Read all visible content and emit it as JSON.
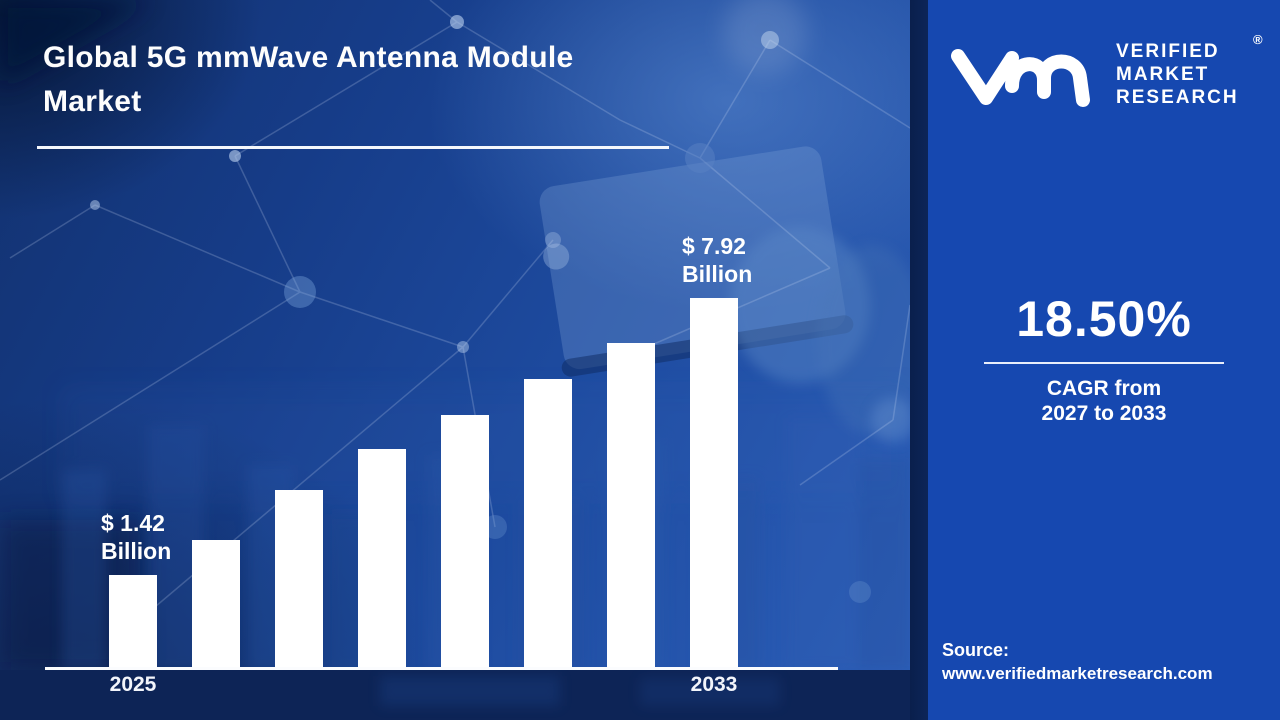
{
  "header": {
    "title": "Global 5G mmWave Antenna Module Market"
  },
  "brand": {
    "logo_icon": "vmr-monogram",
    "name_lines": [
      "VERIFIED",
      "MARKET",
      "RESEARCH"
    ],
    "registered_mark": "®"
  },
  "panel": {
    "cagr_value": "18.50%",
    "cagr_caption_line1": "CAGR from",
    "cagr_caption_line2": "2027 to 2033",
    "source_label": "Source:",
    "source_url": "www.verifiedmarketresearch.com"
  },
  "colors": {
    "panel_blue": "#1648b0",
    "separator_navy": "#0b2150",
    "photo_mid_blue": "#1d4a9e",
    "bar_color": "#ffffff",
    "text_color": "#ffffff"
  },
  "chart_data": {
    "type": "bar",
    "title": "Global 5G mmWave Antenna Module Market",
    "unit": "USD Billion",
    "categories": [
      "2025",
      "",
      "",
      "",
      "",
      "",
      "",
      "2033"
    ],
    "values": [
      1.42,
      2.24,
      3.41,
      4.38,
      5.17,
      6.02,
      6.87,
      7.92
    ],
    "labeled_values_note": "only first and last bars are labeled; intermediate values estimated from bar heights",
    "value_annotations": [
      {
        "bar_index": 0,
        "lines": [
          "$ 1.42",
          "Billion"
        ]
      },
      {
        "bar_index": 7,
        "lines": [
          "$ 7.92",
          "Billion"
        ]
      }
    ],
    "x_visible_ticks": [
      "2025",
      "2033"
    ],
    "xlabel": "",
    "ylabel": "",
    "y_axis_shown": false,
    "gridlines": false,
    "legend": "none",
    "bar_color": "#ffffff"
  }
}
